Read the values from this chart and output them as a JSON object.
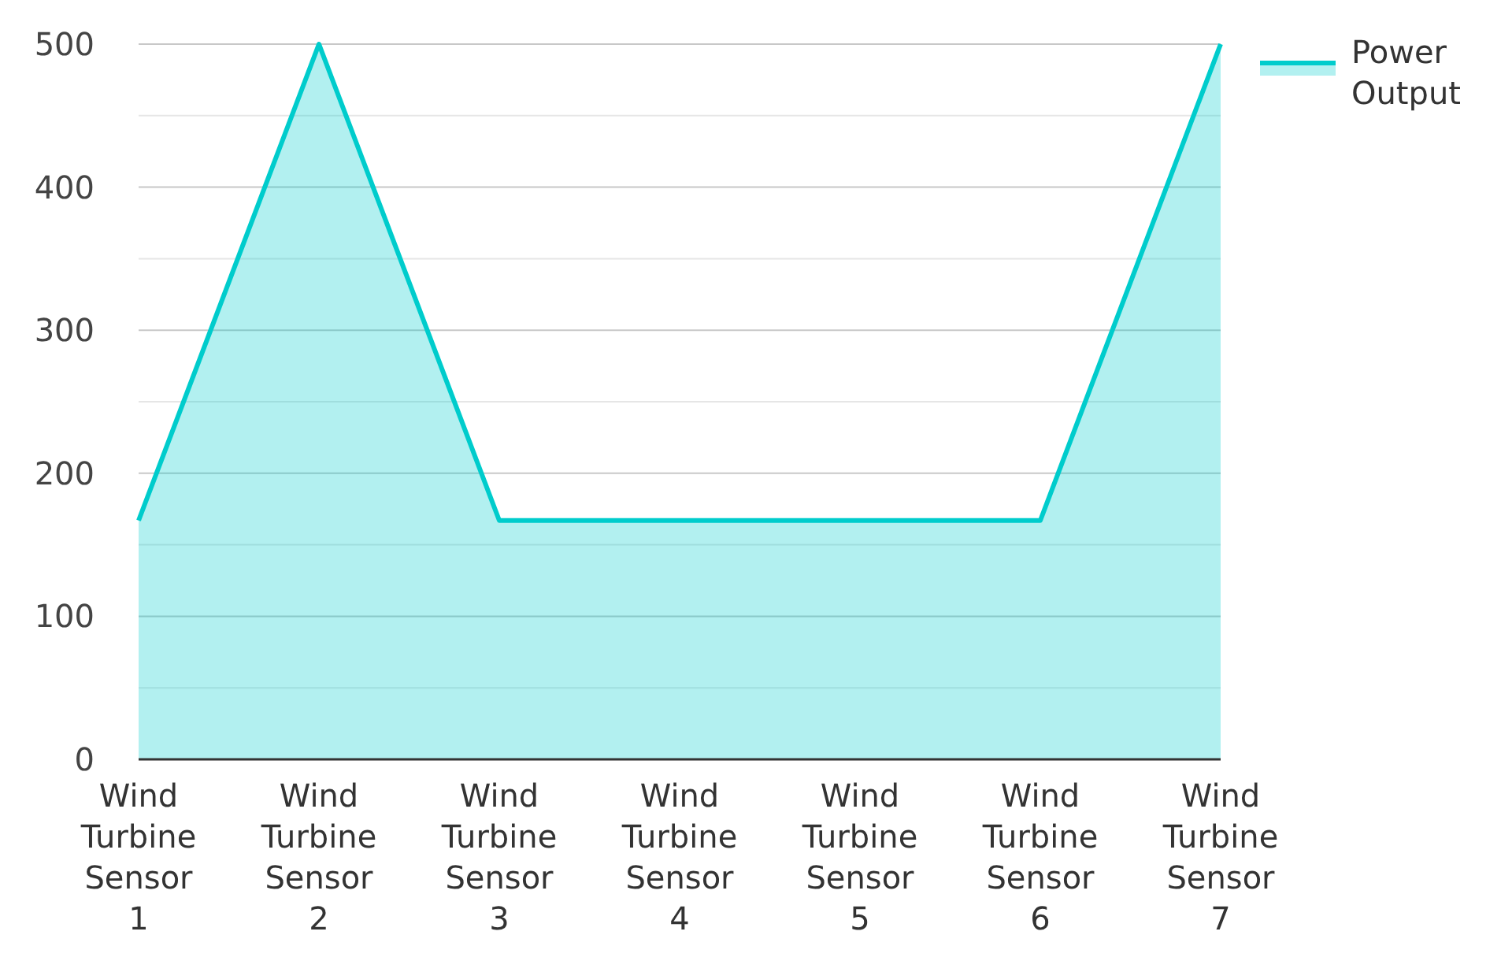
{
  "chart_data": {
    "type": "area",
    "categories": [
      "Wind Turbine Sensor 1",
      "Wind Turbine Sensor 2",
      "Wind Turbine Sensor 3",
      "Wind Turbine Sensor 4",
      "Wind Turbine Sensor 5",
      "Wind Turbine Sensor 6",
      "Wind Turbine Sensor 7"
    ],
    "series": [
      {
        "name": "Power Output",
        "color": "#00cccc",
        "values": [
          167,
          500,
          167,
          167,
          167,
          167,
          500
        ]
      }
    ],
    "ylim": [
      0,
      500
    ],
    "yticks": [
      0,
      {
        "value": 50,
        "label": null
      },
      100,
      {
        "value": 150,
        "label": null
      },
      200,
      {
        "value": 250,
        "label": null
      },
      300,
      {
        "value": 350,
        "label": null
      },
      400,
      {
        "value": 450,
        "label": null
      },
      500
    ],
    "grid": true,
    "legend": "top right"
  }
}
